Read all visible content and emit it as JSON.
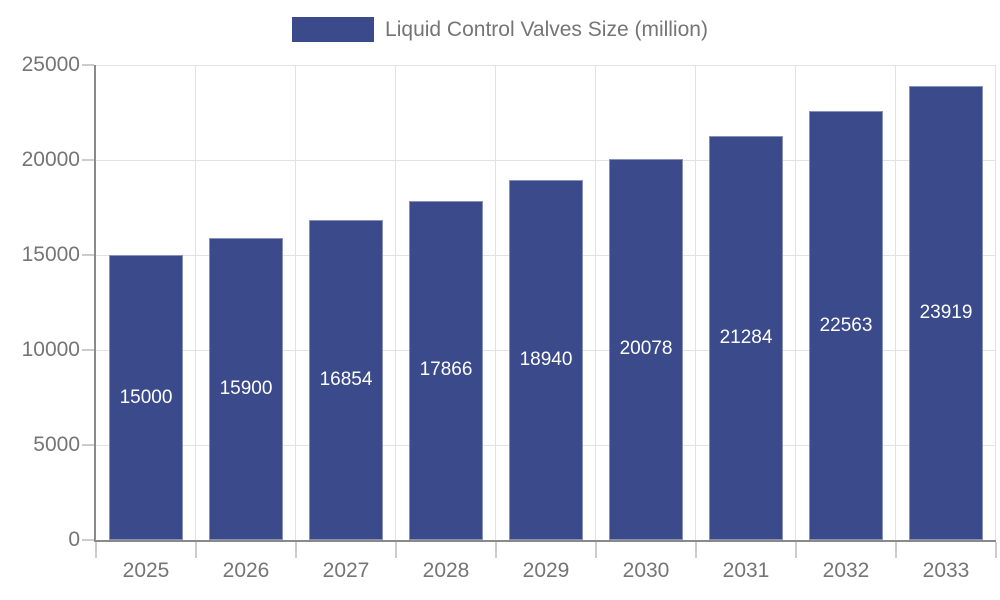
{
  "chart_data": {
    "type": "bar",
    "title": "",
    "categories": [
      "2025",
      "2026",
      "2027",
      "2028",
      "2029",
      "2030",
      "2031",
      "2032",
      "2033"
    ],
    "series": [
      {
        "name": "Liquid Control Valves Size (million)",
        "values": [
          15000,
          15900,
          16854,
          17866,
          18940,
          20078,
          21284,
          22563,
          23919
        ]
      }
    ],
    "xlabel": "",
    "ylabel": "",
    "ylim": [
      0,
      25000
    ],
    "yticks": [
      0,
      5000,
      10000,
      15000,
      20000,
      25000
    ],
    "grid": true,
    "legend_position": "top-center",
    "value_label_position": "inside-center",
    "colors": {
      "bar": "#3A4A8B",
      "bar_edge": "rgba(255,255,255,0.4)",
      "value_label": "#ffffff",
      "axis_text": "#757575",
      "axis_line": "#8a8a8a",
      "tick": "#cccccc",
      "gridline": "#e2e2e6",
      "background": "#ffffff"
    }
  }
}
